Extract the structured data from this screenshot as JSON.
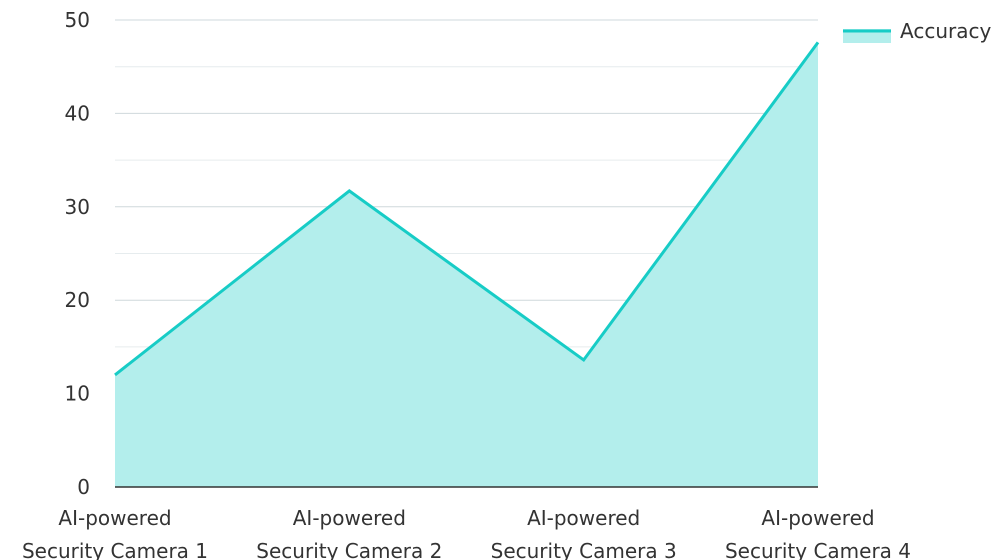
{
  "chart_data": {
    "type": "area",
    "categories": [
      [
        "AI-powered",
        "Security Camera 1"
      ],
      [
        "AI-powered",
        "Security Camera 2"
      ],
      [
        "AI-powered",
        "Security Camera 3"
      ],
      [
        "AI-powered",
        "Security Camera 4"
      ]
    ],
    "series": [
      {
        "name": "Accuracy",
        "values": [
          12,
          31.7,
          13.6,
          47.6
        ],
        "color": "#17CCC6",
        "fill": "#B3EEEC"
      }
    ],
    "ylim": [
      0,
      50
    ],
    "yticks": [
      0,
      10,
      20,
      30,
      40,
      50
    ],
    "minor_grid": [
      5,
      15,
      25,
      35,
      45
    ],
    "grid": true,
    "legend_position": "top-right",
    "gridline_color": "#cfd8dc",
    "axis_color": "#333333"
  }
}
